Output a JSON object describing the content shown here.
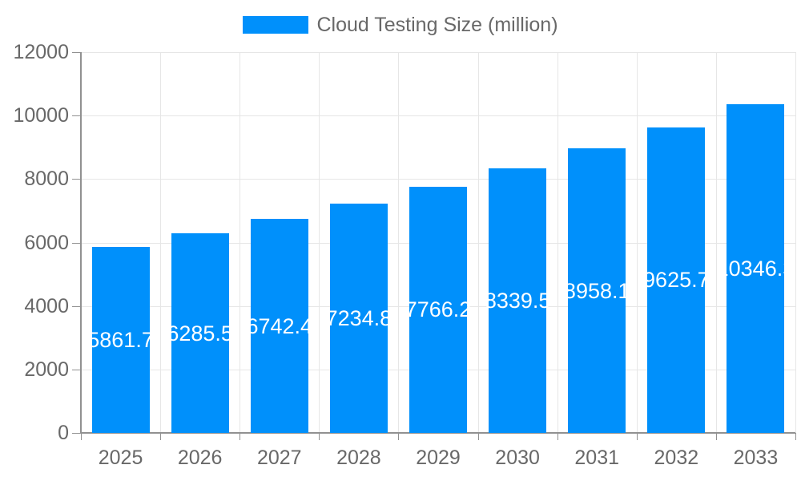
{
  "legend": {
    "label": "Cloud Testing Size (million)"
  },
  "chart_data": {
    "type": "bar",
    "title": "Cloud Testing Size (million)",
    "categories": [
      "2025",
      "2026",
      "2027",
      "2028",
      "2029",
      "2030",
      "2031",
      "2032",
      "2033"
    ],
    "values": [
      5861.7,
      6285.5,
      6742.4,
      7234.8,
      7766.2,
      8339.5,
      8958.1,
      9625.7,
      10346.3
    ],
    "value_labels": [
      "5861.7",
      "6285.5",
      "6742.4",
      "7234.8",
      "7766.2",
      "8339.5",
      "8958.1",
      "9625.7",
      "10346.3"
    ],
    "xlabel": "",
    "ylabel": "",
    "ylim": [
      0,
      12000
    ],
    "yticks": [
      0,
      2000,
      4000,
      6000,
      8000,
      10000,
      12000
    ],
    "grid": true,
    "legend_position": "top",
    "bar_label_position": "center-inside",
    "colors": {
      "bar": "#0090fb",
      "bar_label_text": "#ffffff",
      "tick_text": "#686868",
      "legend_text": "#686868",
      "grid_line": "#e6e6e6",
      "axis_line": "#919191",
      "background": "#ffffff"
    }
  }
}
